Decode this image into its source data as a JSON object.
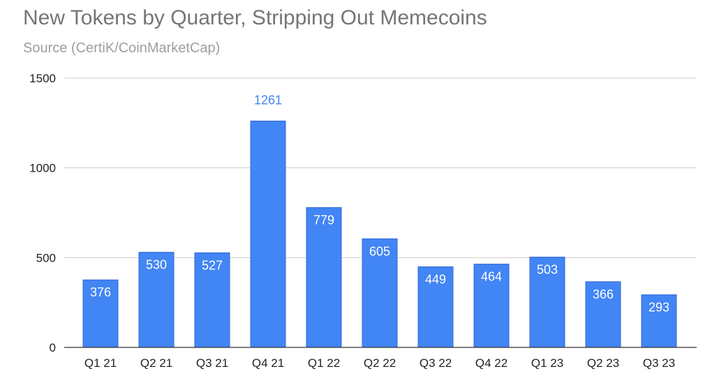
{
  "chart_data": {
    "type": "bar",
    "title": "New Tokens by Quarter, Stripping Out Memecoins",
    "subtitle": "Source (CertiK/CoinMarketCap)",
    "xlabel": "",
    "ylabel": "",
    "categories": [
      "Q1 21",
      "Q2 21",
      "Q3 21",
      "Q4 21",
      "Q1 22",
      "Q2 22",
      "Q3 22",
      "Q4 22",
      "Q1 23",
      "Q2 23",
      "Q3 23"
    ],
    "values": [
      376,
      530,
      527,
      1261,
      779,
      605,
      449,
      464,
      503,
      366,
      293
    ],
    "data_labels": [
      "376",
      "530",
      "527",
      "1261",
      "779",
      "605",
      "449",
      "464",
      "503",
      "366",
      "293"
    ],
    "ylim": [
      0,
      1500
    ],
    "yticks": [
      0,
      500,
      1000,
      1500
    ],
    "ytick_labels": [
      "0",
      "500",
      "1000",
      "1500"
    ],
    "grid": true,
    "legend": "none",
    "colors": {
      "bar": "#4285f4",
      "bar_edge": "#3367d6",
      "grid": "#cccccc",
      "axis": "#333333",
      "outside_label": "#4285f4",
      "inside_label": "#ffffff"
    }
  }
}
